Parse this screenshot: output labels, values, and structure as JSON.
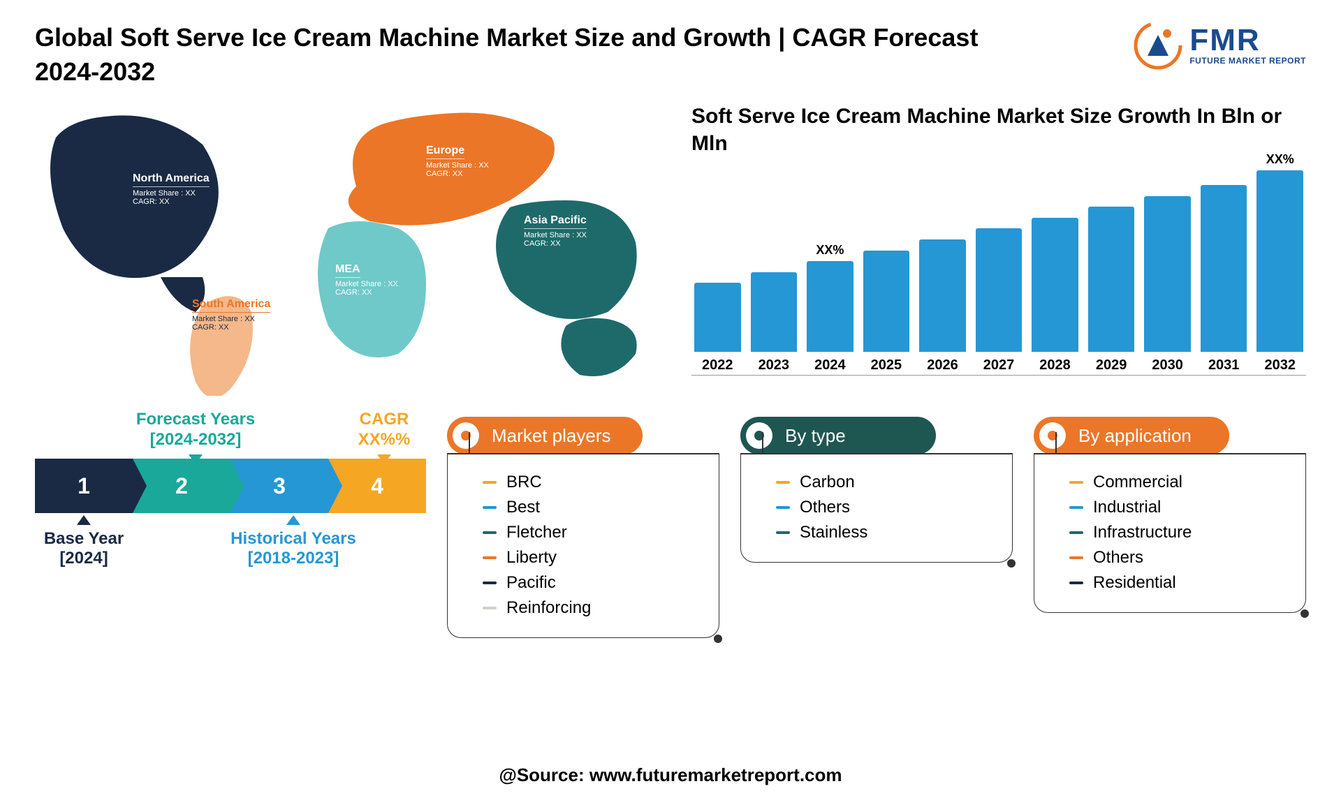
{
  "title": "Global Soft Serve Ice Cream Machine Market Size and Growth | CAGR Forecast 2024-2032",
  "logo": {
    "brand": "FMR",
    "tagline": "FUTURE MARKET REPORT"
  },
  "map": {
    "regions": [
      {
        "key": "north_america",
        "name": "North America",
        "share": "Market Share : XX",
        "cagr": "CAGR: XX",
        "color": "#1a2a44"
      },
      {
        "key": "south_america",
        "name": "South America",
        "share": "Market Share : XX",
        "cagr": "CAGR: XX",
        "color": "#f4b88a"
      },
      {
        "key": "europe",
        "name": "Europe",
        "share": "Market Share : XX",
        "cagr": "CAGR: XX",
        "color": "#ec7627"
      },
      {
        "key": "mea",
        "name": "MEA",
        "share": "Market Share : XX",
        "cagr": "CAGR: XX",
        "color": "#6fc9c9"
      },
      {
        "key": "asia_pacific",
        "name": "Asia Pacific",
        "share": "Market Share : XX",
        "cagr": "CAGR: XX",
        "color": "#1e6a6a"
      }
    ]
  },
  "bar_chart": {
    "title": "Soft Serve Ice Cream Machine Market Size Growth In Bln or Mln",
    "type": "bar",
    "years": [
      "2022",
      "2023",
      "2024",
      "2025",
      "2026",
      "2027",
      "2028",
      "2029",
      "2030",
      "2031",
      "2032"
    ],
    "values": [
      38,
      44,
      50,
      56,
      62,
      68,
      74,
      80,
      86,
      92,
      100
    ],
    "bar_color": "#2597d4",
    "annotations": {
      "2024": "XX%",
      "2032": "XX%"
    },
    "background_color": "#ffffff",
    "bar_width": 0.78,
    "label_fontsize": 20
  },
  "timeline": {
    "segments": [
      {
        "n": "1",
        "color": "#1a2a44"
      },
      {
        "n": "2",
        "color": "#1aa89a"
      },
      {
        "n": "3",
        "color": "#2597d4"
      },
      {
        "n": "4",
        "color": "#f5a623"
      }
    ],
    "labels": {
      "base": {
        "title": "Base Year",
        "range": "[2024]",
        "color": "#1a2a44"
      },
      "forecast": {
        "title": "Forecast Years",
        "range": "[2024-2032]",
        "color": "#1aa89a"
      },
      "historical": {
        "title": "Historical Years",
        "range": "[2018-2023]",
        "color": "#2597d4"
      },
      "cagr": {
        "title": "CAGR",
        "range": "XX%%",
        "color": "#f5a623"
      }
    }
  },
  "categories": [
    {
      "title": "Market players",
      "pill_color": "orange",
      "items": [
        "BRC",
        "Best",
        "Fletcher",
        "Liberty",
        "Pacific",
        "Reinforcing"
      ],
      "dash_colors": [
        "#f5a623",
        "#2597d4",
        "#1e6a6a",
        "#ec7627",
        "#1a2a44",
        "#cfd3c8"
      ]
    },
    {
      "title": "By type",
      "pill_color": "teal",
      "items": [
        "Carbon",
        "Others",
        "Stainless"
      ],
      "dash_colors": [
        "#f5a623",
        "#2597d4",
        "#1e6a6a"
      ]
    },
    {
      "title": "By application",
      "pill_color": "orange",
      "items": [
        "Commercial",
        "Industrial",
        "Infrastructure",
        "Others",
        "Residential"
      ],
      "dash_colors": [
        "#f5a623",
        "#2597d4",
        "#1e6a6a",
        "#ec7627",
        "#1a2a44"
      ]
    }
  ],
  "source": "@Source: www.futuremarketreport.com"
}
